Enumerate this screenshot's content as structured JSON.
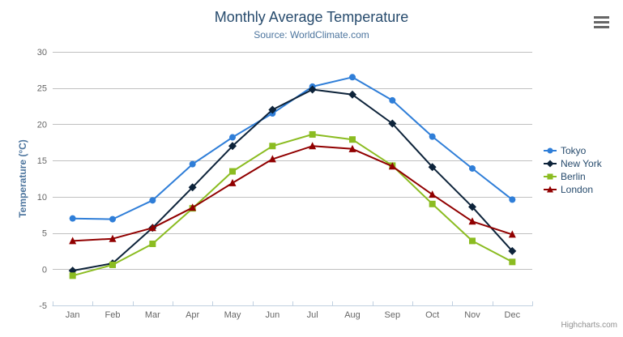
{
  "chart_data": {
    "type": "line",
    "title": "Monthly Average Temperature",
    "subtitle": "Source: WorldClimate.com",
    "xlabel": "",
    "ylabel": "Temperature (°C)",
    "ylim": [
      -5,
      30
    ],
    "yticks": [
      -5,
      0,
      5,
      10,
      15,
      20,
      25,
      30
    ],
    "grid": true,
    "legend_position": "right",
    "categories": [
      "Jan",
      "Feb",
      "Mar",
      "Apr",
      "May",
      "Jun",
      "Jul",
      "Aug",
      "Sep",
      "Oct",
      "Nov",
      "Dec"
    ],
    "series": [
      {
        "name": "Tokyo",
        "color": "#2f7ed8",
        "marker": "circle",
        "values": [
          7.0,
          6.9,
          9.5,
          14.5,
          18.2,
          21.5,
          25.2,
          26.5,
          23.3,
          18.3,
          13.9,
          9.6
        ]
      },
      {
        "name": "New York",
        "color": "#0d233a",
        "marker": "diamond",
        "values": [
          -0.2,
          0.8,
          5.7,
          11.3,
          17.0,
          22.0,
          24.8,
          24.1,
          20.1,
          14.1,
          8.6,
          2.5
        ]
      },
      {
        "name": "Berlin",
        "color": "#8bbc21",
        "marker": "square",
        "values": [
          -0.9,
          0.6,
          3.5,
          8.4,
          13.5,
          17.0,
          18.6,
          17.9,
          14.3,
          9.0,
          3.9,
          1.0
        ]
      },
      {
        "name": "London",
        "color": "#910000",
        "marker": "triangle",
        "values": [
          3.9,
          4.2,
          5.7,
          8.5,
          11.9,
          15.2,
          17.0,
          16.6,
          14.2,
          10.3,
          6.6,
          4.8
        ]
      }
    ]
  },
  "theme": {
    "title_color": "#274b6d",
    "subtitle_color": "#4d759e",
    "axis_title_color": "#4d759e",
    "axis_label_color": "#666666",
    "grid_color": "#c0c0c0",
    "axis_line_color": "#c0d0e0",
    "legend_text_color": "#274b6d",
    "credit_color": "#909090"
  },
  "ui": {
    "credit": "Highcharts.com",
    "export_button_tooltip": "Chart context menu"
  }
}
